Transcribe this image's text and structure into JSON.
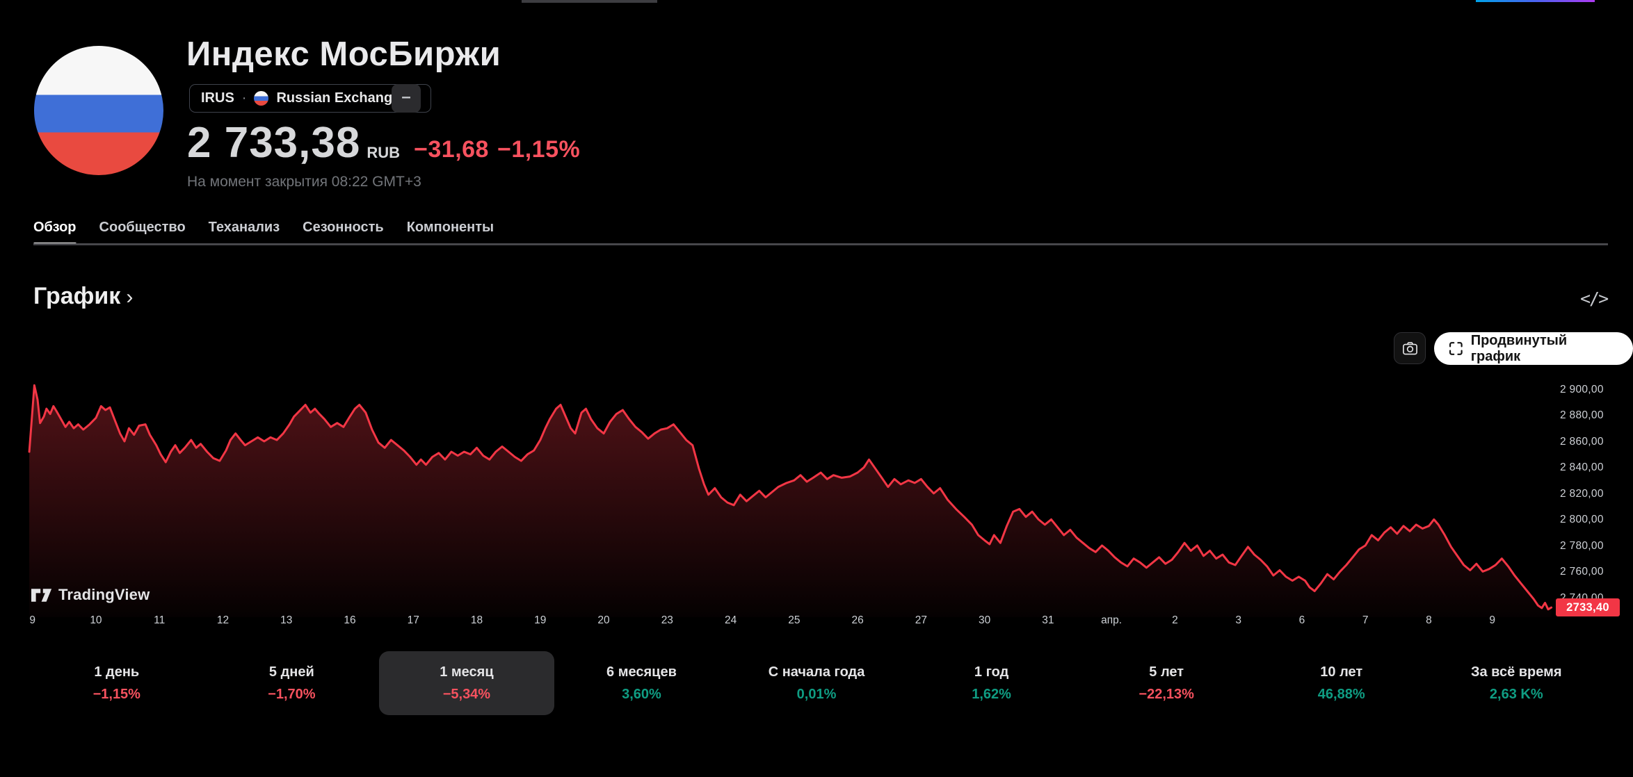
{
  "header": {
    "title": "Индекс МосБиржи",
    "symbol": {
      "code": "IRUS",
      "separator": "·",
      "exchange": "Russian Exchange"
    },
    "price": {
      "value": "2 733,38",
      "currency": "RUB",
      "change": "−31,68",
      "change_pct": "−1,15%"
    },
    "closing_note": "На момент закрытия 08:22 GMT+3",
    "minus_button_glyph": "–"
  },
  "tabs": [
    {
      "label": "Обзор",
      "active": true
    },
    {
      "label": "Сообщество",
      "active": false
    },
    {
      "label": "Теханализ",
      "active": false
    },
    {
      "label": "Сезонность",
      "active": false
    },
    {
      "label": "Компоненты",
      "active": false
    }
  ],
  "section": {
    "title": "График",
    "chevron": "›",
    "code_icon_glyph": "</>"
  },
  "chart_toolbar": {
    "camera_icon": "camera-icon",
    "advanced_button_label": "Продвинутый график"
  },
  "watermark": "TradingView",
  "last_price_badge": {
    "label": "2733,40",
    "value": 2733.4
  },
  "periods": [
    {
      "label": "1 день",
      "value": "−1,15%",
      "dir": "down",
      "selected": false
    },
    {
      "label": "5 дней",
      "value": "−1,70%",
      "dir": "down",
      "selected": false
    },
    {
      "label": "1 месяц",
      "value": "−5,34%",
      "dir": "down",
      "selected": true
    },
    {
      "label": "6 месяцев",
      "value": "3,60%",
      "dir": "up",
      "selected": false
    },
    {
      "label": "С начала года",
      "value": "0,01%",
      "dir": "up",
      "selected": false
    },
    {
      "label": "1 год",
      "value": "1,62%",
      "dir": "up",
      "selected": false
    },
    {
      "label": "5 лет",
      "value": "−22,13%",
      "dir": "down",
      "selected": false
    },
    {
      "label": "10 лет",
      "value": "46,88%",
      "dir": "up",
      "selected": false
    },
    {
      "label": "За всё время",
      "value": "2,63 K%",
      "dir": "up",
      "selected": false
    }
  ],
  "colors": {
    "line": "#f23645",
    "badge": "#f23645",
    "text_red": "#f7525f",
    "text_green": "#0f9d83",
    "axis_text": "#ced1d6",
    "background": "#000000"
  },
  "chart_data": {
    "type": "area",
    "title": "Индекс МосБиржи, 1 месяц (IRUS, RUB)",
    "legend": "off",
    "grid": "off",
    "x_tick_labels": [
      "9",
      "10",
      "11",
      "12",
      "13",
      "16",
      "17",
      "18",
      "19",
      "20",
      "23",
      "24",
      "25",
      "26",
      "27",
      "30",
      "31",
      "апр.",
      "2",
      "3",
      "6",
      "7",
      "8",
      "9"
    ],
    "y_tick_values": [
      2900,
      2880,
      2860,
      2840,
      2820,
      2800,
      2780,
      2760,
      2740
    ],
    "y_tick_labels": [
      "2 900,00",
      "2 880,00",
      "2 860,00",
      "2 840,00",
      "2 820,00",
      "2 800,00",
      "2 780,00",
      "2 760,00",
      "2 740,00"
    ],
    "ylim": [
      2726,
      2909
    ],
    "xlim": [
      -0.15,
      24.0
    ],
    "last_value": 2733.4,
    "series": [
      {
        "name": "IRUS",
        "color": "#f23645",
        "points": [
          [
            -0.05,
            2853
          ],
          [
            0.03,
            2904
          ],
          [
            0.08,
            2893
          ],
          [
            0.12,
            2875
          ],
          [
            0.18,
            2880
          ],
          [
            0.22,
            2886
          ],
          [
            0.28,
            2882
          ],
          [
            0.33,
            2888
          ],
          [
            0.38,
            2884
          ],
          [
            0.45,
            2878
          ],
          [
            0.52,
            2872
          ],
          [
            0.58,
            2876
          ],
          [
            0.65,
            2871
          ],
          [
            0.72,
            2874
          ],
          [
            0.8,
            2870
          ],
          [
            0.9,
            2874
          ],
          [
            1,
            2879
          ],
          [
            1.08,
            2888
          ],
          [
            1.15,
            2885
          ],
          [
            1.22,
            2887
          ],
          [
            1.3,
            2877
          ],
          [
            1.38,
            2867
          ],
          [
            1.45,
            2861
          ],
          [
            1.52,
            2871
          ],
          [
            1.6,
            2866
          ],
          [
            1.68,
            2873
          ],
          [
            1.78,
            2874
          ],
          [
            1.85,
            2866
          ],
          [
            1.95,
            2858
          ],
          [
            2.02,
            2851
          ],
          [
            2.1,
            2845
          ],
          [
            2.18,
            2853
          ],
          [
            2.25,
            2858
          ],
          [
            2.32,
            2852
          ],
          [
            2.4,
            2856
          ],
          [
            2.5,
            2862
          ],
          [
            2.58,
            2856
          ],
          [
            2.65,
            2859
          ],
          [
            2.75,
            2853
          ],
          [
            2.85,
            2848
          ],
          [
            2.95,
            2846
          ],
          [
            3.05,
            2854
          ],
          [
            3.12,
            2862
          ],
          [
            3.2,
            2867
          ],
          [
            3.28,
            2862
          ],
          [
            3.35,
            2858
          ],
          [
            3.45,
            2861
          ],
          [
            3.55,
            2864
          ],
          [
            3.65,
            2861
          ],
          [
            3.75,
            2864
          ],
          [
            3.85,
            2862
          ],
          [
            3.95,
            2867
          ],
          [
            4.05,
            2874
          ],
          [
            4.12,
            2880
          ],
          [
            4.2,
            2884
          ],
          [
            4.3,
            2889
          ],
          [
            4.38,
            2883
          ],
          [
            4.45,
            2886
          ],
          [
            4.52,
            2882
          ],
          [
            4.6,
            2878
          ],
          [
            4.7,
            2872
          ],
          [
            4.8,
            2875
          ],
          [
            4.9,
            2872
          ],
          [
            5,
            2880
          ],
          [
            5.08,
            2886
          ],
          [
            5.15,
            2889
          ],
          [
            5.25,
            2883
          ],
          [
            5.35,
            2870
          ],
          [
            5.45,
            2860
          ],
          [
            5.55,
            2856
          ],
          [
            5.65,
            2862
          ],
          [
            5.75,
            2858
          ],
          [
            5.85,
            2854
          ],
          [
            5.95,
            2849
          ],
          [
            6.05,
            2843
          ],
          [
            6.12,
            2847
          ],
          [
            6.2,
            2843
          ],
          [
            6.3,
            2849
          ],
          [
            6.4,
            2852
          ],
          [
            6.5,
            2847
          ],
          [
            6.6,
            2853
          ],
          [
            6.7,
            2850
          ],
          [
            6.8,
            2853
          ],
          [
            6.9,
            2851
          ],
          [
            7,
            2856
          ],
          [
            7.1,
            2850
          ],
          [
            7.2,
            2847
          ],
          [
            7.3,
            2853
          ],
          [
            7.4,
            2857
          ],
          [
            7.5,
            2853
          ],
          [
            7.6,
            2849
          ],
          [
            7.7,
            2846
          ],
          [
            7.8,
            2851
          ],
          [
            7.9,
            2854
          ],
          [
            8,
            2862
          ],
          [
            8.08,
            2871
          ],
          [
            8.15,
            2878
          ],
          [
            8.25,
            2886
          ],
          [
            8.32,
            2889
          ],
          [
            8.4,
            2880
          ],
          [
            8.48,
            2871
          ],
          [
            8.55,
            2867
          ],
          [
            8.65,
            2883
          ],
          [
            8.72,
            2886
          ],
          [
            8.8,
            2878
          ],
          [
            8.9,
            2871
          ],
          [
            9,
            2867
          ],
          [
            9.1,
            2876
          ],
          [
            9.2,
            2882
          ],
          [
            9.3,
            2885
          ],
          [
            9.4,
            2878
          ],
          [
            9.5,
            2872
          ],
          [
            9.6,
            2868
          ],
          [
            9.7,
            2863
          ],
          [
            9.8,
            2867
          ],
          [
            9.9,
            2870
          ],
          [
            10,
            2871
          ],
          [
            10.1,
            2874
          ],
          [
            10.2,
            2868
          ],
          [
            10.3,
            2862
          ],
          [
            10.4,
            2858
          ],
          [
            10.5,
            2840
          ],
          [
            10.58,
            2828
          ],
          [
            10.65,
            2820
          ],
          [
            10.75,
            2825
          ],
          [
            10.85,
            2818
          ],
          [
            10.95,
            2814
          ],
          [
            11.05,
            2812
          ],
          [
            11.15,
            2820
          ],
          [
            11.25,
            2815
          ],
          [
            11.35,
            2819
          ],
          [
            11.45,
            2823
          ],
          [
            11.55,
            2818
          ],
          [
            11.65,
            2822
          ],
          [
            11.75,
            2826
          ],
          [
            11.88,
            2829
          ],
          [
            12,
            2831
          ],
          [
            12.1,
            2835
          ],
          [
            12.2,
            2830
          ],
          [
            12.3,
            2833
          ],
          [
            12.42,
            2837
          ],
          [
            12.52,
            2832
          ],
          [
            12.62,
            2835
          ],
          [
            12.75,
            2833
          ],
          [
            12.88,
            2834
          ],
          [
            13,
            2837
          ],
          [
            13.1,
            2841
          ],
          [
            13.18,
            2847
          ],
          [
            13.28,
            2840
          ],
          [
            13.38,
            2833
          ],
          [
            13.48,
            2826
          ],
          [
            13.58,
            2832
          ],
          [
            13.68,
            2828
          ],
          [
            13.8,
            2831
          ],
          [
            13.9,
            2829
          ],
          [
            14,
            2832
          ],
          [
            14.1,
            2826
          ],
          [
            14.2,
            2821
          ],
          [
            14.3,
            2825
          ],
          [
            14.42,
            2816
          ],
          [
            14.55,
            2809
          ],
          [
            14.68,
            2803
          ],
          [
            14.8,
            2797
          ],
          [
            14.9,
            2789
          ],
          [
            15,
            2785
          ],
          [
            15.08,
            2782
          ],
          [
            15.15,
            2789
          ],
          [
            15.25,
            2783
          ],
          [
            15.35,
            2796
          ],
          [
            15.45,
            2807
          ],
          [
            15.55,
            2809
          ],
          [
            15.65,
            2803
          ],
          [
            15.75,
            2807
          ],
          [
            15.85,
            2801
          ],
          [
            15.95,
            2797
          ],
          [
            16.05,
            2801
          ],
          [
            16.15,
            2795
          ],
          [
            16.25,
            2789
          ],
          [
            16.35,
            2793
          ],
          [
            16.45,
            2787
          ],
          [
            16.55,
            2783
          ],
          [
            16.65,
            2779
          ],
          [
            16.75,
            2776
          ],
          [
            16.85,
            2781
          ],
          [
            16.95,
            2777
          ],
          [
            17.05,
            2772
          ],
          [
            17.15,
            2768
          ],
          [
            17.25,
            2765
          ],
          [
            17.35,
            2771
          ],
          [
            17.45,
            2768
          ],
          [
            17.55,
            2764
          ],
          [
            17.65,
            2768
          ],
          [
            17.75,
            2772
          ],
          [
            17.85,
            2767
          ],
          [
            17.95,
            2770
          ],
          [
            18.05,
            2776
          ],
          [
            18.15,
            2783
          ],
          [
            18.25,
            2777
          ],
          [
            18.35,
            2781
          ],
          [
            18.45,
            2773
          ],
          [
            18.55,
            2777
          ],
          [
            18.65,
            2771
          ],
          [
            18.75,
            2774
          ],
          [
            18.85,
            2768
          ],
          [
            18.95,
            2766
          ],
          [
            19.05,
            2773
          ],
          [
            19.15,
            2780
          ],
          [
            19.25,
            2774
          ],
          [
            19.35,
            2770
          ],
          [
            19.45,
            2765
          ],
          [
            19.55,
            2758
          ],
          [
            19.65,
            2762
          ],
          [
            19.75,
            2757
          ],
          [
            19.85,
            2754
          ],
          [
            19.95,
            2757
          ],
          [
            20.05,
            2754
          ],
          [
            20.12,
            2749
          ],
          [
            20.2,
            2746
          ],
          [
            20.3,
            2752
          ],
          [
            20.4,
            2759
          ],
          [
            20.5,
            2755
          ],
          [
            20.6,
            2761
          ],
          [
            20.7,
            2766
          ],
          [
            20.8,
            2772
          ],
          [
            20.9,
            2778
          ],
          [
            21,
            2781
          ],
          [
            21.1,
            2789
          ],
          [
            21.2,
            2785
          ],
          [
            21.3,
            2791
          ],
          [
            21.4,
            2795
          ],
          [
            21.5,
            2790
          ],
          [
            21.6,
            2796
          ],
          [
            21.7,
            2792
          ],
          [
            21.8,
            2797
          ],
          [
            21.9,
            2794
          ],
          [
            22,
            2796
          ],
          [
            22.08,
            2801
          ],
          [
            22.15,
            2797
          ],
          [
            22.25,
            2789
          ],
          [
            22.35,
            2780
          ],
          [
            22.45,
            2773
          ],
          [
            22.55,
            2766
          ],
          [
            22.65,
            2762
          ],
          [
            22.75,
            2767
          ],
          [
            22.85,
            2761
          ],
          [
            22.95,
            2763
          ],
          [
            23.05,
            2766
          ],
          [
            23.15,
            2771
          ],
          [
            23.25,
            2765
          ],
          [
            23.35,
            2758
          ],
          [
            23.45,
            2752
          ],
          [
            23.55,
            2746
          ],
          [
            23.65,
            2740
          ],
          [
            23.72,
            2735
          ],
          [
            23.78,
            2733
          ],
          [
            23.83,
            2737
          ],
          [
            23.88,
            2732
          ],
          [
            23.93,
            2733.4
          ]
        ]
      }
    ]
  }
}
